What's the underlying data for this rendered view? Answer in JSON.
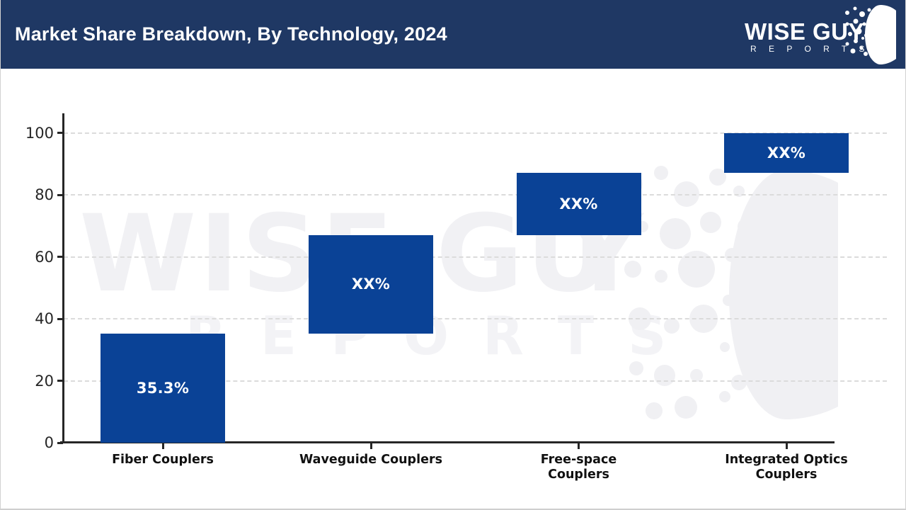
{
  "header": {
    "title": "Market Share Breakdown, By Technology, 2024",
    "bg_color": "#1F3864",
    "logo": {
      "wordmark": "WISE GUY",
      "subtext": "R E P O R T S"
    }
  },
  "watermark": {
    "large_text": "WISE GU",
    "large_text_tail": "Y",
    "small_text": "R E P O R T S"
  },
  "chart_data": {
    "type": "bar",
    "variant": "floating-segment-waterfall",
    "title": "Market Share Breakdown, By Technology, 2024",
    "categories": [
      "Fiber Couplers",
      "Waveguide Couplers",
      "Free-space\nCouplers",
      "Integrated Optics\nCouplers"
    ],
    "bars": [
      {
        "category": "Fiber Couplers",
        "start": 0,
        "end": 35.3,
        "label": "35.3%"
      },
      {
        "category": "Waveguide Couplers",
        "start": 35.3,
        "end": 67,
        "label": "XX%"
      },
      {
        "category": "Free-space Couplers",
        "start": 67,
        "end": 87,
        "label": "XX%"
      },
      {
        "category": "Integrated Optics Couplers",
        "start": 87,
        "end": 100,
        "label": "XX%"
      },
      {
        "note": "segment sizes",
        "values": [
          35.3,
          31.7,
          20,
          13
        ]
      }
    ],
    "yticks": [
      0,
      20,
      40,
      60,
      80,
      100
    ],
    "ylim": [
      0,
      106
    ],
    "xlabel": "",
    "ylabel": "",
    "bar_color": "#0A4296",
    "bar_label_color": "#FFFFFF",
    "grid": "horizontal-dashed",
    "gridline_color": "#DBDBDB",
    "axis_color": "#262626",
    "legend": "none"
  }
}
